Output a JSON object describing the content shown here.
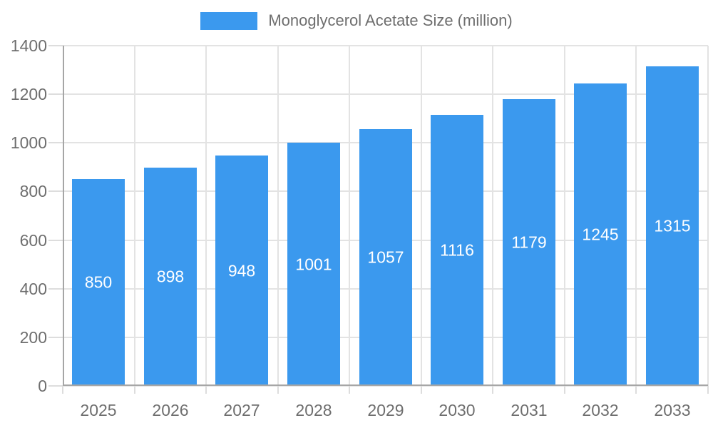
{
  "legend": {
    "label": "Monoglycerol Acetate Size (million)"
  },
  "chart_data": {
    "type": "bar",
    "title": "",
    "categories": [
      "2025",
      "2026",
      "2027",
      "2028",
      "2029",
      "2030",
      "2031",
      "2032",
      "2033"
    ],
    "series": [
      {
        "name": "Monoglycerol Acetate Size (million)",
        "values": [
          850,
          898,
          948,
          1001,
          1057,
          1116,
          1179,
          1245,
          1315
        ]
      }
    ],
    "xlabel": "",
    "ylabel": "",
    "ylim": [
      0,
      1400
    ],
    "ytick_step": 200,
    "yticks": [
      0,
      200,
      400,
      600,
      800,
      1000,
      1200,
      1400
    ],
    "grid": true,
    "legend_position": "top",
    "value_labels": "inside-center"
  },
  "colors": {
    "bar": "#3B99EE",
    "axis_text": "#6E6E6E",
    "legend_text": "#6E6E6E",
    "grid": "#E3E3E3",
    "tick": "#DDDDDD",
    "axis_line": "#A6A6A6",
    "value_label": "#FFFFFF",
    "background": "#FFFFFF"
  }
}
